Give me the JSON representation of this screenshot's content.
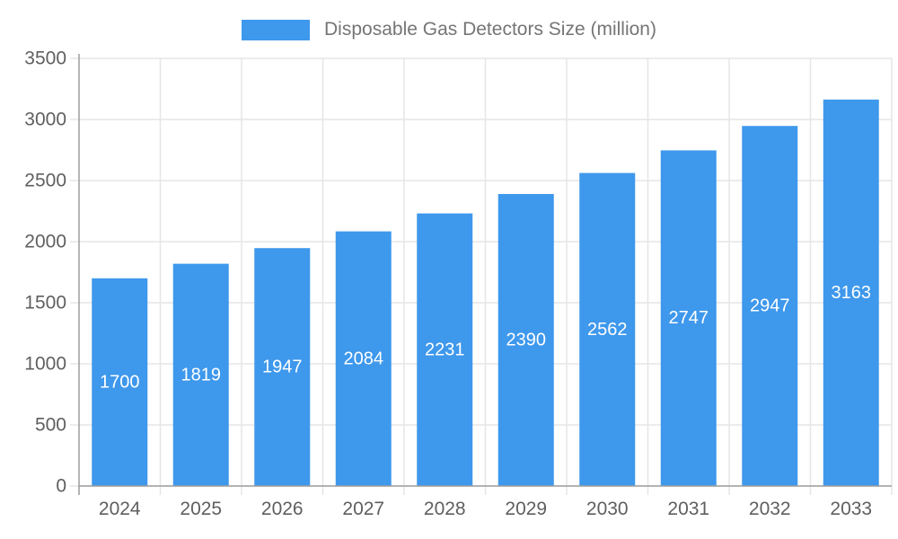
{
  "legend": {
    "label": "Disposable Gas Detectors Size (million)"
  },
  "colors": {
    "bar": "#3E98EC",
    "grid": "#e6e6e6",
    "axis": "#9e9e9e",
    "axis_label": "#5f5f5f",
    "legend_label": "#757575",
    "value_label": "#ffffff",
    "background": "#ffffff"
  },
  "chart_data": {
    "type": "bar",
    "title": "Disposable Gas Detectors Size (million)",
    "series_name": "Disposable Gas Detectors Size (million)",
    "categories": [
      "2024",
      "2025",
      "2026",
      "2027",
      "2028",
      "2029",
      "2030",
      "2031",
      "2032",
      "2033"
    ],
    "values": [
      1700,
      1819,
      1947,
      2084,
      2231,
      2390,
      2562,
      2747,
      2947,
      3163
    ],
    "value_labels": [
      "1700",
      "1819",
      "1947",
      "2084",
      "2231",
      "2390",
      "2562",
      "2747",
      "2947",
      "3163"
    ],
    "xlabel": "",
    "ylabel": "",
    "ylim": [
      0,
      3500
    ],
    "ytick_interval": 500,
    "yticks": [
      0,
      500,
      1000,
      1500,
      2000,
      2500,
      3000,
      3500
    ],
    "grid": true,
    "vertical_gridlines": true,
    "legend_position": "top",
    "value_label_position": "bar-center"
  }
}
